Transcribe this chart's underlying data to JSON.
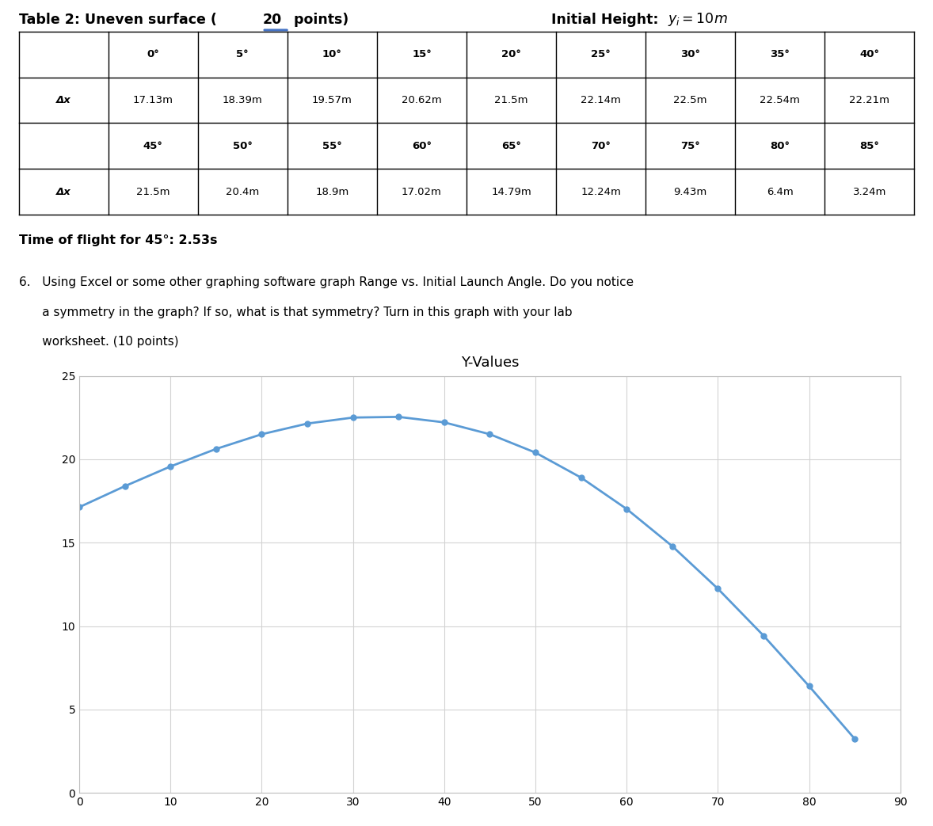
{
  "row1_angles": [
    "0°",
    "5°",
    "10°",
    "15°",
    "20°",
    "25°",
    "30°",
    "35°",
    "40°"
  ],
  "row1_values": [
    "17.13m",
    "18.39m",
    "19.57m",
    "20.62m",
    "21.5m",
    "22.14m",
    "22.5m",
    "22.54m",
    "22.21m"
  ],
  "row2_angles": [
    "45°",
    "50°",
    "55°",
    "60°",
    "65°",
    "70°",
    "75°",
    "80°",
    "85°"
  ],
  "row2_values": [
    "21.5m",
    "20.4m",
    "18.9m",
    "17.02m",
    "14.79m",
    "12.24m",
    "9.43m",
    "6.4m",
    "3.24m"
  ],
  "chart_title": "Y-Values",
  "x_values": [
    0,
    5,
    10,
    15,
    20,
    25,
    30,
    35,
    40,
    45,
    50,
    55,
    60,
    65,
    70,
    75,
    80,
    85
  ],
  "y_values": [
    17.13,
    18.39,
    19.57,
    20.62,
    21.5,
    22.14,
    22.5,
    22.54,
    22.21,
    21.5,
    20.4,
    18.9,
    17.02,
    14.79,
    12.24,
    9.43,
    6.4,
    3.24
  ],
  "line_color": "#5B9BD5",
  "marker_color": "#5B9BD5",
  "grid_color": "#D3D3D3",
  "x_ticks": [
    0,
    10,
    20,
    30,
    40,
    50,
    60,
    70,
    80,
    90
  ],
  "y_ticks": [
    0,
    5,
    10,
    15,
    20,
    25
  ],
  "x_lim": [
    0,
    90
  ],
  "y_lim": [
    0,
    25
  ],
  "tof_text": "Time of flight for 45°: 2.53s",
  "q_lines": [
    "6.   Using Excel or some other graphing software graph Range vs. Initial Launch Angle. Do you notice",
    "      a symmetry in the graph? If so, what is that symmetry? Turn in this graph with your lab",
    "      worksheet. (10 points)"
  ]
}
